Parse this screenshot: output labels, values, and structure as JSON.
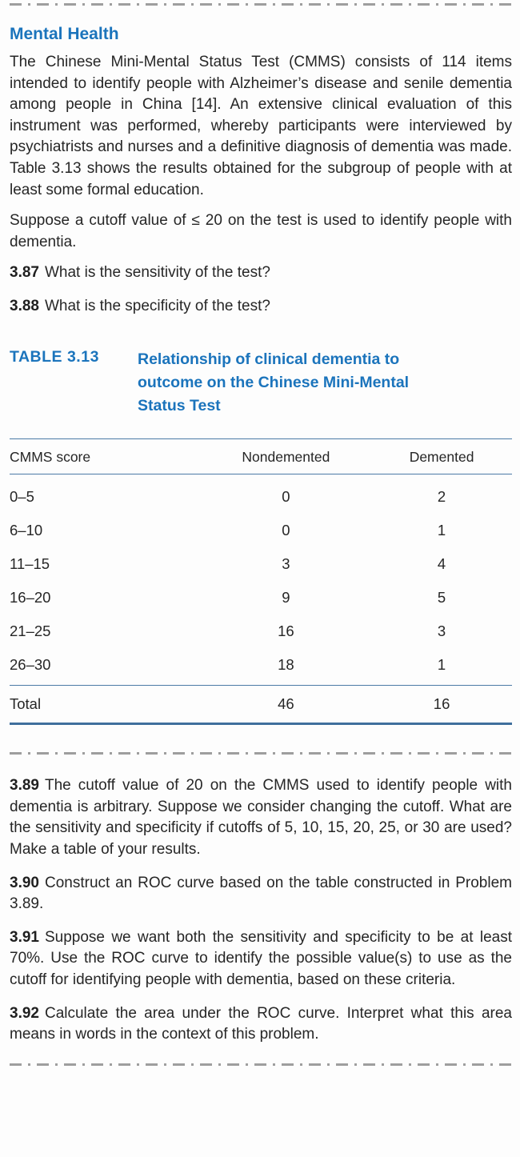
{
  "colors": {
    "heading_blue": "#1b74bc",
    "table_rule_blue": "#4c7aa6",
    "body_text": "#262626",
    "dash_rule_gray": "#9e9e9e"
  },
  "section": {
    "title": "Mental Health",
    "intro": "The Chinese Mini-Mental Status Test (CMMS) consists of 114 items intended to identify people with Alzheimer’s disease and senile dementia among people in China [14]. An extensive clinical evaluation of this instrument was performed, whereby participants were interviewed by psychiatrists and nurses and a definitive diagnosis of dementia was made. Table 3.13 shows the results obtained for the subgroup of people with at least some formal education.",
    "cutoff_note": "Suppose a cutoff value of ≤ 20 on the test is used to identify people with dementia."
  },
  "problems_before": [
    {
      "number": "3.87",
      "text": "What is the sensitivity of the test?"
    },
    {
      "number": "3.88",
      "text": "What is the specificity of the test?"
    }
  ],
  "table": {
    "label": "TABLE 3.13",
    "title": "Relationship of clinical dementia to outcome on the Chinese Mini-Mental Status Test",
    "columns": [
      "CMMS score",
      "Nondemented",
      "Demented"
    ],
    "rows": [
      [
        "0–5",
        "0",
        "2"
      ],
      [
        "6–10",
        "0",
        "1"
      ],
      [
        "11–15",
        "3",
        "4"
      ],
      [
        "16–20",
        "9",
        "5"
      ],
      [
        "21–25",
        "16",
        "3"
      ],
      [
        "26–30",
        "18",
        "1"
      ]
    ],
    "total_row": [
      "Total",
      "46",
      "16"
    ]
  },
  "problems_after": [
    {
      "number": "3.89",
      "text": "The cutoff value of 20 on the CMMS used to identify people with dementia is arbitrary. Suppose we consider changing the cutoff. What are the sensitivity and specificity if cutoffs of 5, 10, 15, 20, 25, or 30 are used? Make a table of your results."
    },
    {
      "number": "3.90",
      "text": "Construct an ROC curve based on the table constructed in Problem 3.89."
    },
    {
      "number": "3.91",
      "text": "Suppose we want both the sensitivity and specificity to be at least 70%. Use the ROC curve to identify the possible value(s) to use as the cutoff for identifying people with dementia, based on these criteria."
    },
    {
      "number": "3.92",
      "text": "Calculate the area under the ROC curve. Interpret what this area means in words in the context of this problem."
    }
  ]
}
